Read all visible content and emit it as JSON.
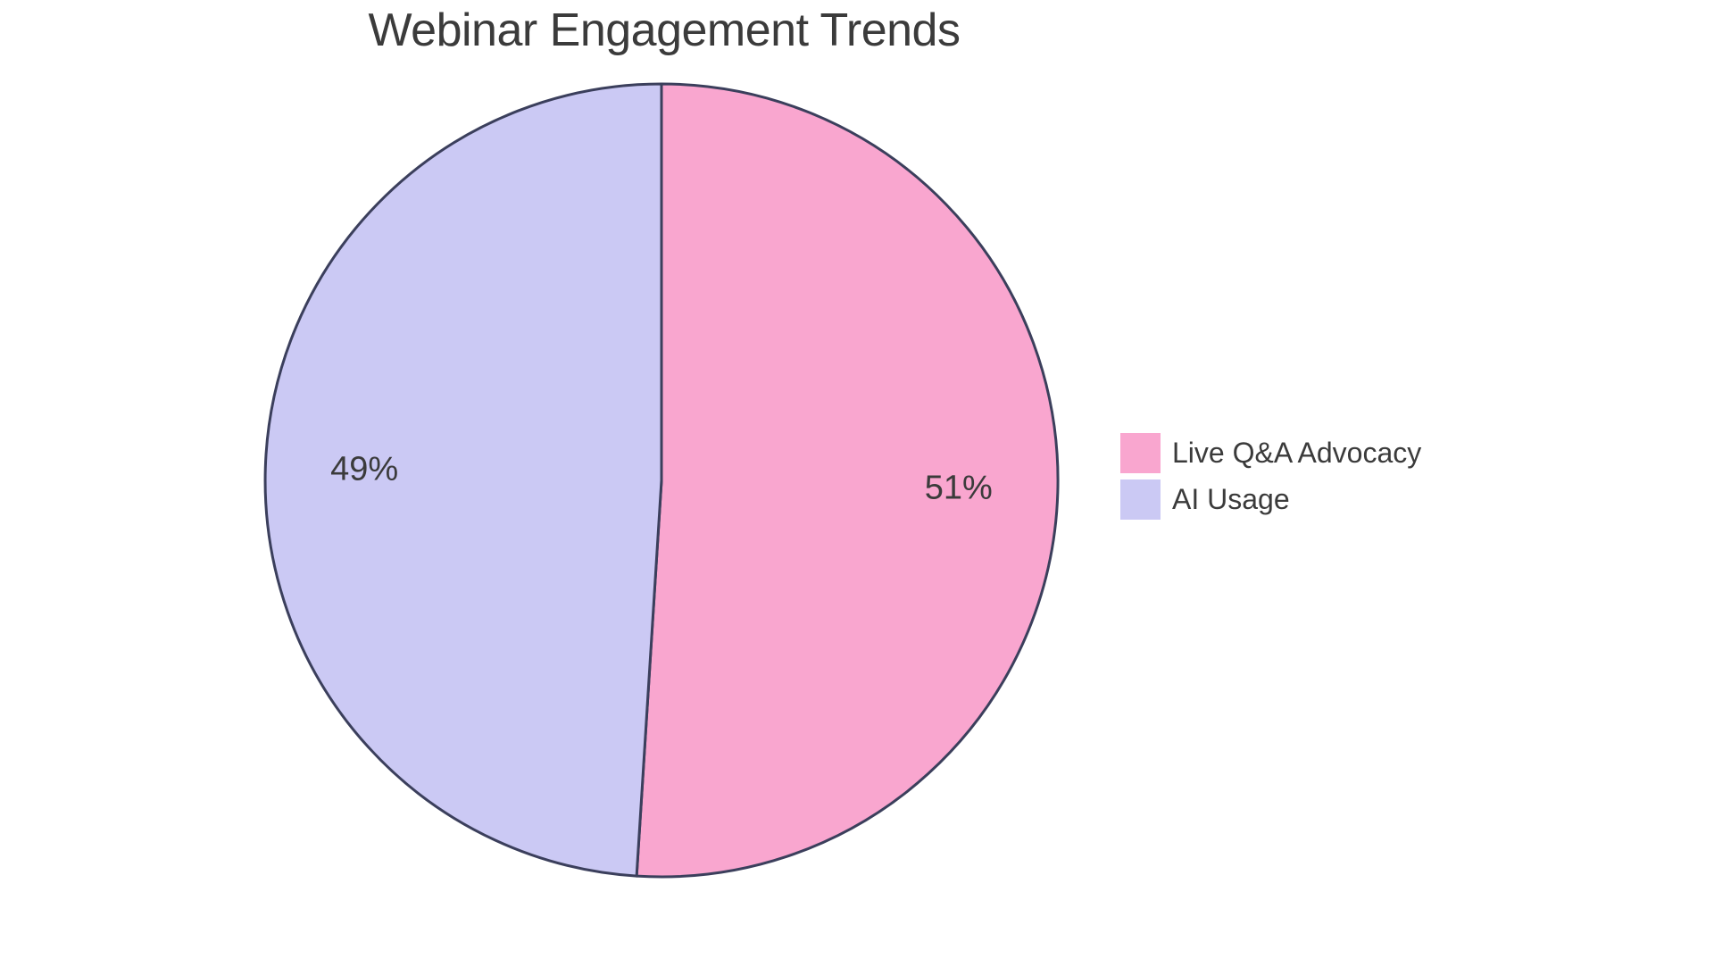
{
  "chart_data": {
    "type": "pie",
    "title": "Webinar Engagement Trends",
    "labels": [
      "Live Q&A Advocacy",
      "AI Usage"
    ],
    "values": [
      51,
      49
    ],
    "slice_labels": [
      "51%",
      "49%"
    ],
    "colors": [
      "#F9A6CF",
      "#CBC9F4"
    ],
    "stroke_color": "#3B3F5C",
    "label_color": "#3B3B3B",
    "start_angle": "top",
    "direction": "clockwise",
    "legend_position": "right"
  }
}
